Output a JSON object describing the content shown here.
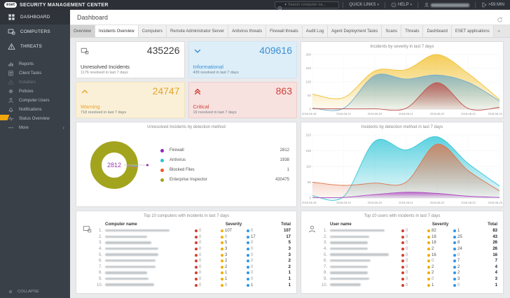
{
  "topbar": {
    "logo_text": "eset",
    "title": "SECURITY MANAGEMENT CENTER",
    "search_placeholder": "Search computer na...",
    "quick_links_label": "QUICK LINKS",
    "help_label": "HELP",
    "session_timer": ">59 MIN"
  },
  "sidebar": {
    "items": [
      {
        "label": "DASHBOARD",
        "icon": "grid",
        "active": true,
        "primary": true
      },
      {
        "label": "COMPUTERS",
        "icon": "computer",
        "primary": true
      },
      {
        "label": "THREATS",
        "icon": "warning",
        "primary": true
      },
      {
        "label": "Reports",
        "icon": "report"
      },
      {
        "label": "Client Tasks",
        "icon": "tasks"
      },
      {
        "label": "Installers",
        "icon": "installer",
        "dimmed": true
      },
      {
        "label": "Policies",
        "icon": "gear"
      },
      {
        "label": "Computer Users",
        "icon": "user"
      },
      {
        "label": "Notifications",
        "icon": "bell"
      },
      {
        "label": "Status Overview",
        "icon": "status"
      },
      {
        "label": "More",
        "icon": "more",
        "chevron": true
      }
    ],
    "collapse_label": "COLLAPSE"
  },
  "header": {
    "title": "Dashboard"
  },
  "tabs": {
    "items": [
      {
        "label": "Overview",
        "state": "shaded"
      },
      {
        "label": "Incidents Overview",
        "state": "active"
      },
      {
        "label": "Computers"
      },
      {
        "label": "Remote Administrator Server"
      },
      {
        "label": "Antivirus threats"
      },
      {
        "label": "Firewall threats"
      },
      {
        "label": "Audit Log"
      },
      {
        "label": "Agent Deployment Tasks"
      },
      {
        "label": "Scans"
      },
      {
        "label": "Threats"
      },
      {
        "label": "Dashboard"
      },
      {
        "label": "ESET applications"
      }
    ],
    "add_label": "+"
  },
  "cards": [
    {
      "title": "Unresolved Incidents",
      "value": "435226",
      "subtitle": "1176 resolved in last 7 days",
      "icon": "computer",
      "theme": "neutral"
    },
    {
      "title": "Informational",
      "value": "409616",
      "subtitle": "439 resolved in last 7 days",
      "icon": "chevron-down",
      "theme": "info",
      "color": "#3b8fd4"
    },
    {
      "title": "Warning",
      "value": "24747",
      "subtitle": "718 resolved in last 7 days",
      "icon": "chevron-up",
      "theme": "warn",
      "color": "#e5a42e"
    },
    {
      "title": "Critical",
      "value": "863",
      "subtitle": "19 resolved in last 7 days",
      "icon": "double-chevron-up",
      "theme": "crit",
      "color": "#cd423c"
    }
  ],
  "tables": {
    "severity_colors": [
      "#d23f31",
      "#eeaf00",
      "#2f96ea"
    ],
    "computers": {
      "title": "Top 10 computers with incidents in last 7 days",
      "icon": "computer",
      "name_header": "Computer name",
      "severity_header": "Severity",
      "total_header": "Total",
      "rows": [
        {
          "rank": "1.",
          "name_width": 92,
          "sev": [
            0,
            107,
            0
          ],
          "total": "107"
        },
        {
          "rank": "2.",
          "name_width": 60,
          "sev": [
            0,
            0,
            17
          ],
          "total": "17"
        },
        {
          "rank": "3.",
          "name_width": 66,
          "sev": [
            0,
            5,
            0
          ],
          "total": "5"
        },
        {
          "rank": "4.",
          "name_width": 76,
          "sev": [
            0,
            3,
            0
          ],
          "total": "3"
        },
        {
          "rank": "5.",
          "name_width": 76,
          "sev": [
            0,
            3,
            0
          ],
          "total": "3"
        },
        {
          "rank": "6.",
          "name_width": 72,
          "sev": [
            0,
            2,
            0
          ],
          "total": "2"
        },
        {
          "rank": "7.",
          "name_width": 72,
          "sev": [
            0,
            2,
            0
          ],
          "total": "2"
        },
        {
          "rank": "8.",
          "name_width": 60,
          "sev": [
            0,
            1,
            0
          ],
          "total": "1"
        },
        {
          "rank": "9.",
          "name_width": 62,
          "sev": [
            0,
            1,
            0
          ],
          "total": "1"
        },
        {
          "rank": "10.",
          "name_width": 70,
          "sev": [
            0,
            0,
            1
          ],
          "total": "1"
        }
      ]
    },
    "users": {
      "title": "Top 10 users with incidents in last 7 days",
      "icon": "user",
      "name_header": "User name",
      "severity_header": "Severity",
      "total_header": "Total",
      "rows": [
        {
          "rank": "1.",
          "name_width": 78,
          "sev": [
            0,
            82,
            1
          ],
          "total": "83"
        },
        {
          "rank": "2.",
          "name_width": 56,
          "sev": [
            0,
            18,
            25
          ],
          "total": "43"
        },
        {
          "rank": "3.",
          "name_width": 54,
          "sev": [
            0,
            18,
            8
          ],
          "total": "26"
        },
        {
          "rank": "4.",
          "name_width": 54,
          "sev": [
            0,
            2,
            24
          ],
          "total": "26"
        },
        {
          "rank": "5.",
          "name_width": 84,
          "sev": [
            0,
            16,
            0
          ],
          "total": "16"
        },
        {
          "rank": "6.",
          "name_width": 58,
          "sev": [
            0,
            0,
            7
          ],
          "total": "7"
        },
        {
          "rank": "7.",
          "name_width": 54,
          "sev": [
            0,
            2,
            2
          ],
          "total": "4"
        },
        {
          "rank": "8.",
          "name_width": 54,
          "sev": [
            0,
            2,
            2
          ],
          "total": "4"
        },
        {
          "rank": "9.",
          "name_width": 56,
          "sev": [
            0,
            0,
            3
          ],
          "total": "3"
        },
        {
          "rank": "10.",
          "name_width": 44,
          "sev": [
            0,
            1,
            0
          ],
          "total": "1"
        }
      ]
    }
  },
  "chart_data": [
    {
      "type": "area",
      "title": "Incidents by severity in last 7 days",
      "x": [
        "2018-08-18",
        "2018-08-19",
        "2018-08-20",
        "2018-08-21",
        "2018-08-22",
        "2018-08-23",
        "2018-08-24"
      ],
      "ylim": [
        0,
        200
      ],
      "yticks": [
        0,
        50,
        100,
        150,
        200
      ],
      "grid": true,
      "legend_position": "none",
      "series": [
        {
          "name": "Warning",
          "color": "#f2c02e",
          "values": [
            55,
            42,
            140,
            145,
            200,
            130,
            35
          ]
        },
        {
          "name": "Informational",
          "color": "#74aec9",
          "values": [
            4,
            3,
            123,
            110,
            125,
            98,
            30
          ]
        },
        {
          "name": "Critical",
          "color": "#c0504a",
          "values": [
            2,
            1,
            1,
            3,
            97,
            2,
            7
          ]
        }
      ]
    },
    {
      "type": "area",
      "title": "Incidents by detection method in last 7 days",
      "x": [
        "2018-08-18",
        "2018-08-19",
        "2018-08-20",
        "2018-08-21",
        "2018-08-22",
        "2018-08-23",
        "2018-08-24"
      ],
      "ylim": [
        0,
        220
      ],
      "yticks": [
        0,
        55,
        110,
        165,
        220
      ],
      "grid": true,
      "legend_position": "none",
      "series": [
        {
          "name": "cyan-series",
          "color": "#33c6d8",
          "values": [
            8,
            5,
            198,
            168,
            214,
            120,
            42
          ]
        },
        {
          "name": "orange-series",
          "color": "#e0744c",
          "values": [
            55,
            44,
            52,
            55,
            188,
            95,
            25
          ]
        },
        {
          "name": "purple-series",
          "color": "#b04ec2",
          "values": [
            1,
            2,
            12,
            20,
            16,
            6,
            2
          ]
        }
      ]
    },
    {
      "type": "pie",
      "title": "Unresolved Incidents by detection method",
      "labels": [
        "Firewall",
        "Antivirus",
        "Blocked Files",
        "Enterprise Inspector"
      ],
      "values": [
        2812,
        1938,
        1,
        430475
      ],
      "colors": [
        "#9426bb",
        "#29c5d6",
        "#f05a28",
        "#a3a41e"
      ],
      "center_label": "2812",
      "center_label_color": "#a13bb5",
      "legend_position": "right"
    }
  ]
}
